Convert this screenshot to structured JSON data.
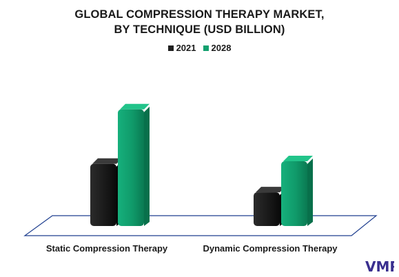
{
  "title_line1": "GLOBAL COMPRESSION THERAPY MARKET,",
  "title_line2": "BY TECHNIQUE (USD BILLION)",
  "colors": {
    "s2021": "#1f1f1f",
    "s2028": "#12a06f",
    "floor": "#1f3f8f",
    "logo": "#3a2f8f"
  },
  "chart_data": {
    "type": "bar",
    "title": "GLOBAL COMPRESSION THERAPY MARKET, BY TECHNIQUE (USD BILLION)",
    "categories": [
      "Static Compression Therapy",
      "Dynamic Compression Therapy"
    ],
    "series": [
      {
        "name": "2021",
        "values": [
          2.4,
          1.3
        ]
      },
      {
        "name": "2028",
        "values": [
          4.5,
          2.5
        ]
      }
    ],
    "ylim": [
      0,
      5
    ],
    "grid": false,
    "legend": "top"
  },
  "logo_text": "VMR"
}
